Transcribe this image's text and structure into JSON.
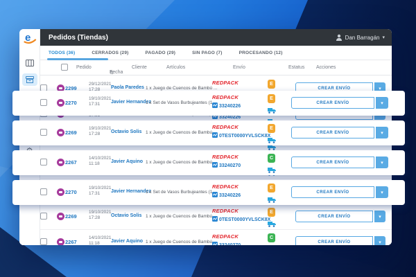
{
  "app": {
    "title": "Pedidos (Tiendas)",
    "user": "Dan Barragán"
  },
  "colors": {
    "accent": "#1d76c0",
    "carrier_red": "#e3242b",
    "status_e": "#f2a72e",
    "status_c": "#3cb454",
    "order_dot": "#a63a9c",
    "active_tab": "#1e88d2"
  },
  "sidebar": {
    "icons": [
      {
        "name": "grid-icon",
        "active": false
      },
      {
        "name": "orders-box-icon",
        "active": true
      },
      {
        "name": "truck-icon",
        "active": false
      },
      {
        "name": "gear-icon",
        "active": false
      }
    ]
  },
  "tabs": [
    {
      "label": "TODOS (36)",
      "active": true
    },
    {
      "label": "CERRADOS (29)",
      "active": false
    },
    {
      "label": "PAGADO (29)",
      "active": false
    },
    {
      "label": "SIN PAGO (7)",
      "active": false
    },
    {
      "label": "PROCESANDO (12)",
      "active": false
    }
  ],
  "table": {
    "headers": [
      "Pedido",
      "Fecha",
      "Cliente",
      "Artículos",
      "Envío",
      "Estatus",
      "Acciones"
    ],
    "sort_icon": "⇅"
  },
  "actions": {
    "create_shipment": "CREAR ENVÍO",
    "dropdown_caret": "▾"
  },
  "carrier": "REDPACK",
  "rows": [
    {
      "order": "2299",
      "date": "29/12/2021",
      "time": "17:28",
      "client": "Paola Paredes",
      "items": "1 x Juego de Cuencos de Bambú ...",
      "tracking": "",
      "status": "E",
      "status_color": "#f2a72e"
    },
    {
      "order": "2270",
      "date": "19/10/2021",
      "time": "17:31",
      "client": "Javier Hernandez",
      "items": "1 x Set de Vasos Burbujeantes (1 ...",
      "tracking": "33240226",
      "status": "E",
      "status_color": "#f2a72e"
    },
    {
      "order": "2269",
      "date": "19/10/2021",
      "time": "17:28",
      "client": "Octavio Solis",
      "items": "1 x Juego de Cuencos de Bambú ...",
      "tracking": "0TEST0000YVLSCK8X",
      "status": "E",
      "status_color": "#f2a72e"
    },
    {
      "order": "2267",
      "date": "14/10/2021",
      "time": "11:18",
      "client": "Javier Aquino",
      "items": "1 x Juego de Cuencos de Bambú ...",
      "tracking": "33240270",
      "status": "C",
      "status_color": "#3cb454"
    },
    {
      "order": "2270",
      "date": "19/10/2021",
      "time": "17:31",
      "client": "Javier Hernandez",
      "items": "1 x Set de Vasos Burbujeantes (1 ...",
      "tracking": "33240226",
      "status": "E",
      "status_color": "#f2a72e"
    },
    {
      "order": "2269",
      "date": "19/10/2021",
      "time": "17:28",
      "client": "Octavio Solis",
      "items": "1 x Juego de Cuencos de Bambú ...",
      "tracking": "0TEST0000YVLSCK8X",
      "status": "E",
      "status_color": "#f2a72e"
    },
    {
      "order": "2267",
      "date": "14/10/2021",
      "time": "11:18",
      "client": "Javier Aquino",
      "items": "1 x Juego de Cuencos de Bambú ...",
      "tracking": "33240270",
      "status": "C",
      "status_color": "#3cb454"
    }
  ],
  "cards": [
    {
      "order": "2270",
      "date": "19/10/2021",
      "time": "17:31",
      "client": "Javier Hernandez",
      "items": "1 x Set de Vasos Burbujeantes (1 ...",
      "tracking": "33240226",
      "status": "E",
      "status_color": "#f2a72e"
    },
    {
      "order": "2269",
      "date": "19/10/2021",
      "time": "17:28",
      "client": "Octavio Solis",
      "items": "1 x Juego de Cuencos de Bambú ...",
      "tracking": "0TEST0000YVLSCK8X",
      "status": "E",
      "status_color": "#f2a72e"
    },
    {
      "order": "2267",
      "date": "14/10/2021",
      "time": "11:18",
      "client": "Javier Aquino",
      "items": "1 x Juego de Cuencos de Bambú ...",
      "tracking": "33240270",
      "status": "C",
      "status_color": "#3cb454"
    },
    {
      "order": "2270",
      "date": "19/10/2021",
      "time": "17:31",
      "client": "Javier Hernandez",
      "items": "1 x Set de Vasos Burbujeantes (1 ...",
      "tracking": "33240226",
      "status": "E",
      "status_color": "#f2a72e"
    }
  ]
}
